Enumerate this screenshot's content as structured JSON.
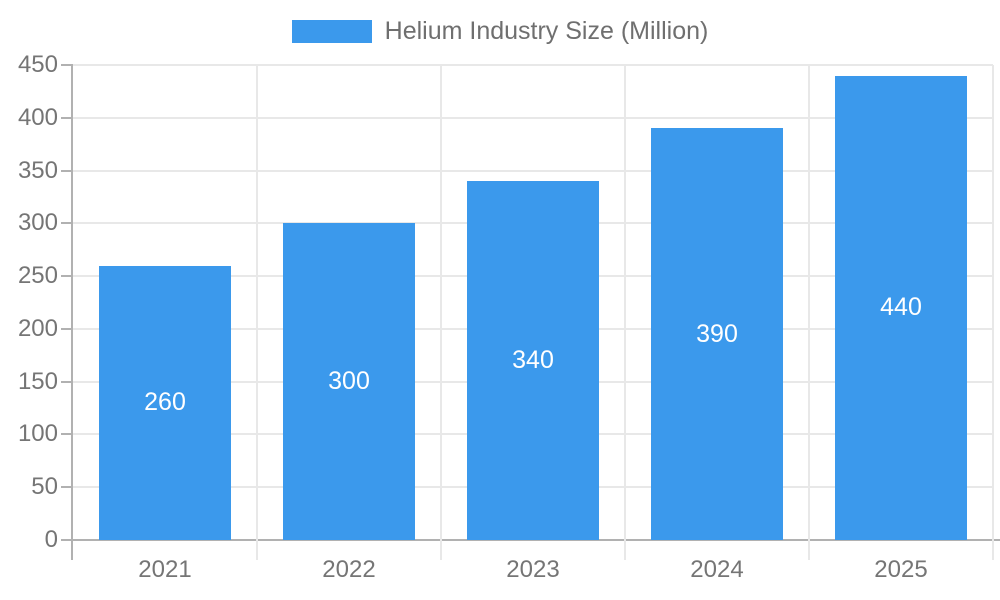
{
  "legend": {
    "label": "Helium Industry Size (Million)"
  },
  "colors": {
    "bar": "#3b99ec",
    "grid": "#e8e8e8",
    "axis": "#b1b1b1",
    "tick_label": "#757575",
    "legend_text": "#6f6f6f",
    "value_label": "#ffffff",
    "background": "#ffffff"
  },
  "chart_data": {
    "type": "bar",
    "title": "Helium Industry Size (Million)",
    "categories": [
      "2021",
      "2022",
      "2023",
      "2024",
      "2025"
    ],
    "series": [
      {
        "name": "Helium Industry Size (Million)",
        "values": [
          260,
          300,
          340,
          390,
          440
        ]
      }
    ],
    "values": [
      260,
      300,
      340,
      390,
      440
    ],
    "bar_labels": [
      260,
      300,
      340,
      390,
      440
    ],
    "xlabel": "",
    "ylabel": "",
    "ylim": [
      0,
      450
    ],
    "ytick_step": 50,
    "yticks": [
      0,
      50,
      100,
      150,
      200,
      250,
      300,
      350,
      400,
      450
    ],
    "grid": true,
    "legend_position": "top"
  }
}
